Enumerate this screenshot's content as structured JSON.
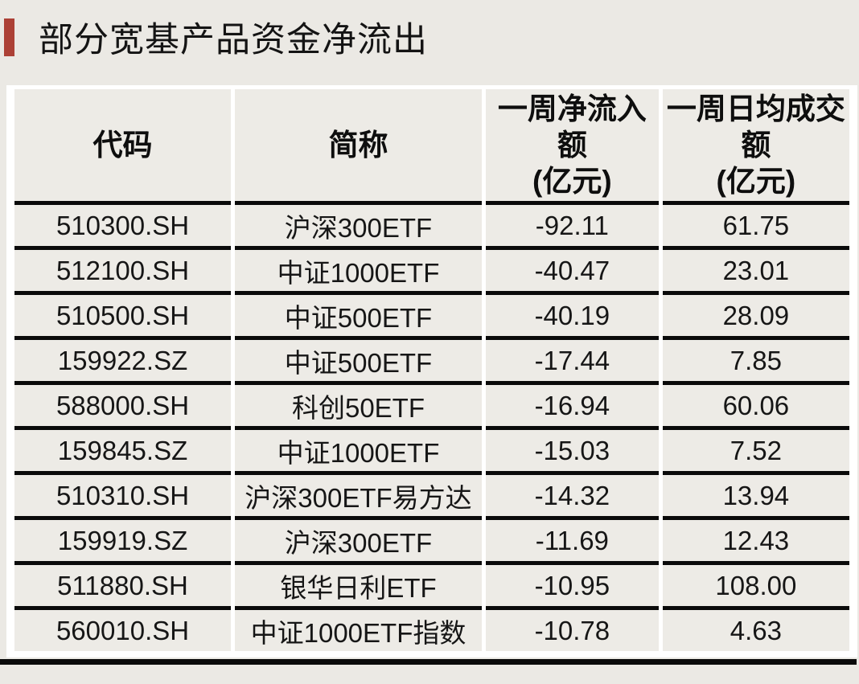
{
  "meta": {
    "background_color": "#ebe9e4",
    "cell_background_color": "#edebe6",
    "grid_gap_color": "#ffffff",
    "rule_color": "#0a0a0a",
    "accent_red": "#ac4136"
  },
  "title": {
    "text": "部分宽基产品资金净流出"
  },
  "table": {
    "headers": [
      "代码",
      "简称",
      "一周净流入\n额\n(亿元)",
      "一周日均成交\n额\n(亿元)"
    ],
    "rows": [
      [
        "510300.SH",
        "沪深300ETF",
        "-92.11",
        "61.75"
      ],
      [
        "512100.SH",
        "中证1000ETF",
        "-40.47",
        "23.01"
      ],
      [
        "510500.SH",
        "中证500ETF",
        "-40.19",
        "28.09"
      ],
      [
        "159922.SZ",
        "中证500ETF",
        "-17.44",
        "7.85"
      ],
      [
        "588000.SH",
        "科创50ETF",
        "-16.94",
        "60.06"
      ],
      [
        "159845.SZ",
        "中证1000ETF",
        "-15.03",
        "7.52"
      ],
      [
        "510310.SH",
        "沪深300ETF易方达",
        "-14.32",
        "13.94"
      ],
      [
        "159919.SZ",
        "沪深300ETF",
        "-11.69",
        "12.43"
      ],
      [
        "511880.SH",
        "银华日利ETF",
        "-10.95",
        "108.00"
      ],
      [
        "560010.SH",
        "中证1000ETF指数",
        "-10.78",
        "4.63"
      ]
    ]
  },
  "chart_data": {
    "type": "table",
    "title": "部分宽基产品资金净流出",
    "columns": [
      "代码",
      "简称",
      "一周净流入额(亿元)",
      "一周日均成交额(亿元)"
    ],
    "rows": [
      {
        "code": "510300.SH",
        "name": "沪深300ETF",
        "weekly_net_inflow_100m_cny": -92.11,
        "weekly_avg_daily_turnover_100m_cny": 61.75
      },
      {
        "code": "512100.SH",
        "name": "中证1000ETF",
        "weekly_net_inflow_100m_cny": -40.47,
        "weekly_avg_daily_turnover_100m_cny": 23.01
      },
      {
        "code": "510500.SH",
        "name": "中证500ETF",
        "weekly_net_inflow_100m_cny": -40.19,
        "weekly_avg_daily_turnover_100m_cny": 28.09
      },
      {
        "code": "159922.SZ",
        "name": "中证500ETF",
        "weekly_net_inflow_100m_cny": -17.44,
        "weekly_avg_daily_turnover_100m_cny": 7.85
      },
      {
        "code": "588000.SH",
        "name": "科创50ETF",
        "weekly_net_inflow_100m_cny": -16.94,
        "weekly_avg_daily_turnover_100m_cny": 60.06
      },
      {
        "code": "159845.SZ",
        "name": "中证1000ETF",
        "weekly_net_inflow_100m_cny": -15.03,
        "weekly_avg_daily_turnover_100m_cny": 7.52
      },
      {
        "code": "510310.SH",
        "name": "沪深300ETF易方达",
        "weekly_net_inflow_100m_cny": -14.32,
        "weekly_avg_daily_turnover_100m_cny": 13.94
      },
      {
        "code": "159919.SZ",
        "name": "沪深300ETF",
        "weekly_net_inflow_100m_cny": -11.69,
        "weekly_avg_daily_turnover_100m_cny": 12.43
      },
      {
        "code": "511880.SH",
        "name": "银华日利ETF",
        "weekly_net_inflow_100m_cny": -10.95,
        "weekly_avg_daily_turnover_100m_cny": 108.0
      },
      {
        "code": "560010.SH",
        "name": "中证1000ETF指数",
        "weekly_net_inflow_100m_cny": -10.78,
        "weekly_avg_daily_turnover_100m_cny": 4.63
      }
    ]
  }
}
